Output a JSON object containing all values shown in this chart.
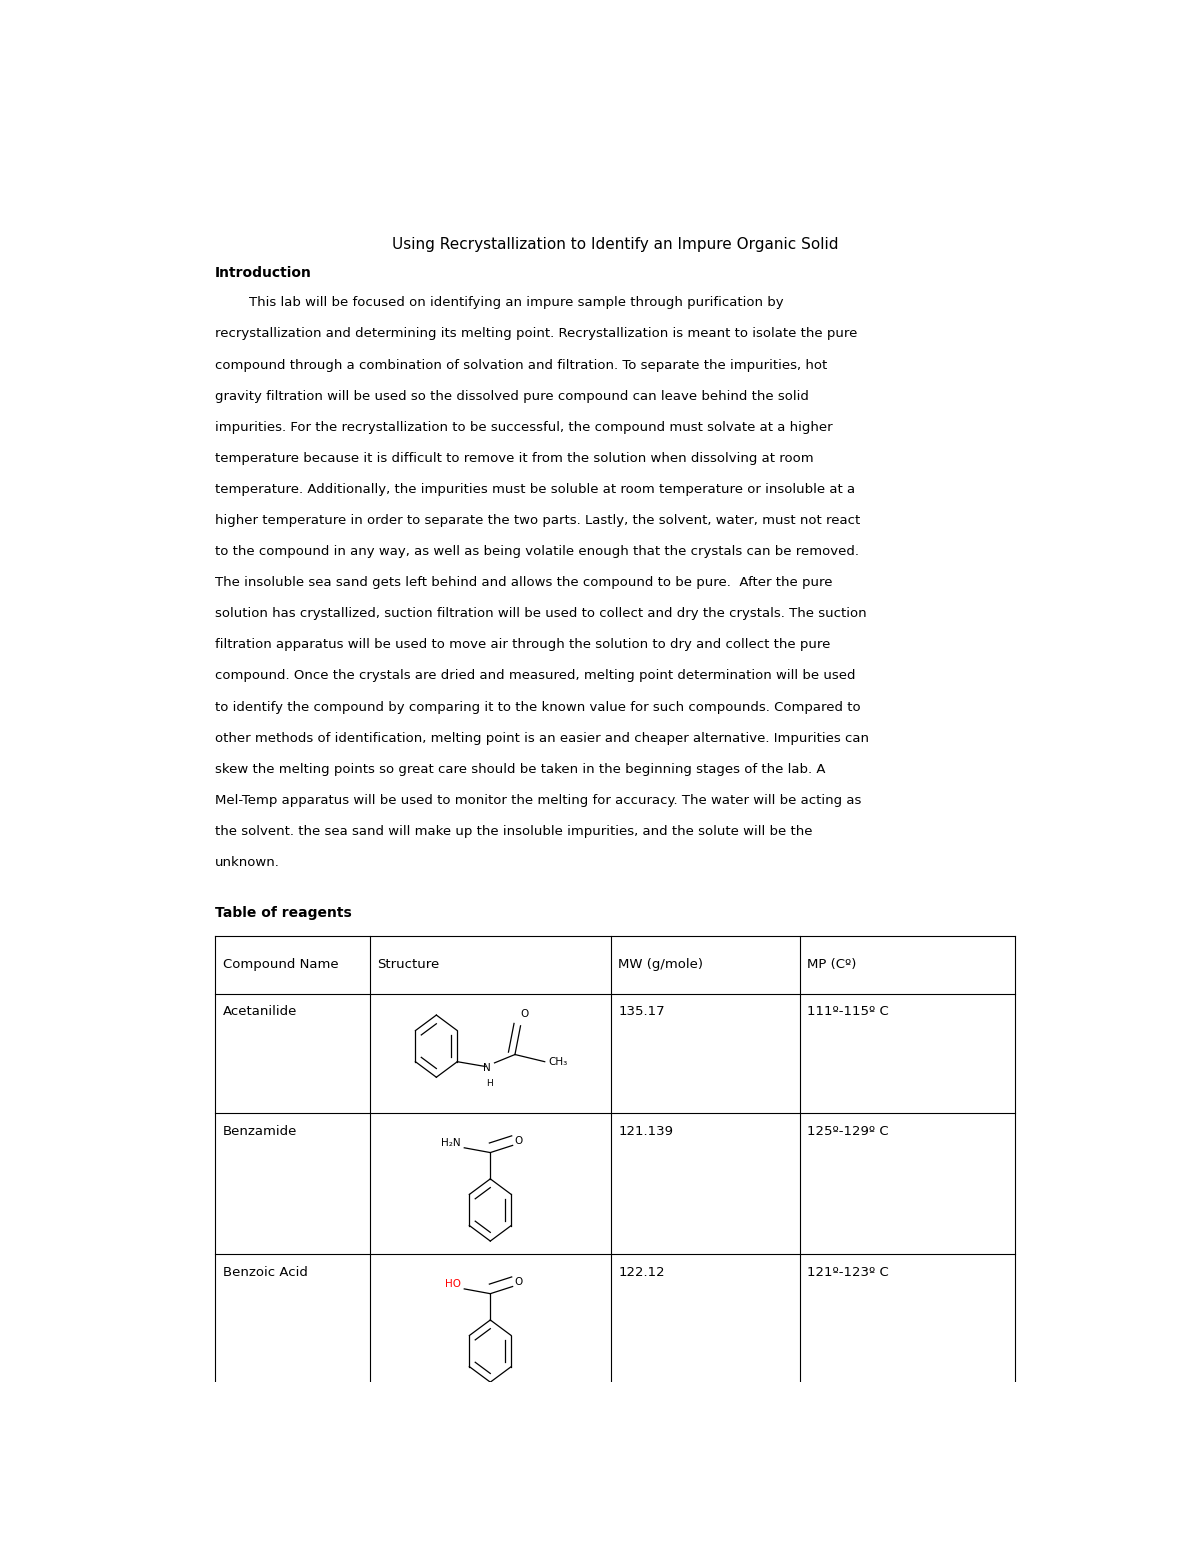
{
  "title": "Using Recrystallization to Identify an Impure Organic Solid",
  "intro_heading": "Introduction",
  "intro_lines": [
    "        This lab will be focused on identifying an impure sample through purification by",
    "recrystallization and determining its melting point. Recrystallization is meant to isolate the pure",
    "compound through a combination of solvation and filtration. To separate the impurities, hot",
    "gravity filtration will be used so the dissolved pure compound can leave behind the solid",
    "impurities. For the recrystallization to be successful, the compound must solvate at a higher",
    "temperature because it is difficult to remove it from the solution when dissolving at room",
    "temperature. Additionally, the impurities must be soluble at room temperature or insoluble at a",
    "higher temperature in order to separate the two parts. Lastly, the solvent, water, must not react",
    "to the compound in any way, as well as being volatile enough that the crystals can be removed.",
    "The insoluble sea sand gets left behind and allows the compound to be pure.  After the pure",
    "solution has crystallized, suction filtration will be used to collect and dry the crystals. The suction",
    "filtration apparatus will be used to move air through the solution to dry and collect the pure",
    "compound. Once the crystals are dried and measured, melting point determination will be used",
    "to identify the compound by comparing it to the known value for such compounds. Compared to",
    "other methods of identification, melting point is an easier and cheaper alternative. Impurities can",
    "skew the melting points so great care should be taken in the beginning stages of the lab. A",
    "Mel-Temp apparatus will be used to monitor the melting for accuracy. The water will be acting as",
    "the solvent. the sea sand will make up the insoluble impurities, and the solute will be the",
    "unknown."
  ],
  "table_heading": "Table of reagents",
  "col_headers": [
    "Compound Name",
    "Structure",
    "MW (g/mole)",
    "MP (Cº)"
  ],
  "compounds": [
    {
      "name": "Acetanilide",
      "mw": "135.17",
      "mp": "111º-115º C"
    },
    {
      "name": "Benzamide",
      "mw": "121.139",
      "mp": "125º-129º C"
    },
    {
      "name": "Benzoic Acid",
      "mw": "122.12",
      "mp": "121º-123º C"
    }
  ],
  "bg_color": "#ffffff",
  "text_color": "#000000",
  "table_line_color": "#000000",
  "font_size_title": 11,
  "font_size_body": 9.5,
  "font_size_heading": 10,
  "font_size_table": 9.5
}
